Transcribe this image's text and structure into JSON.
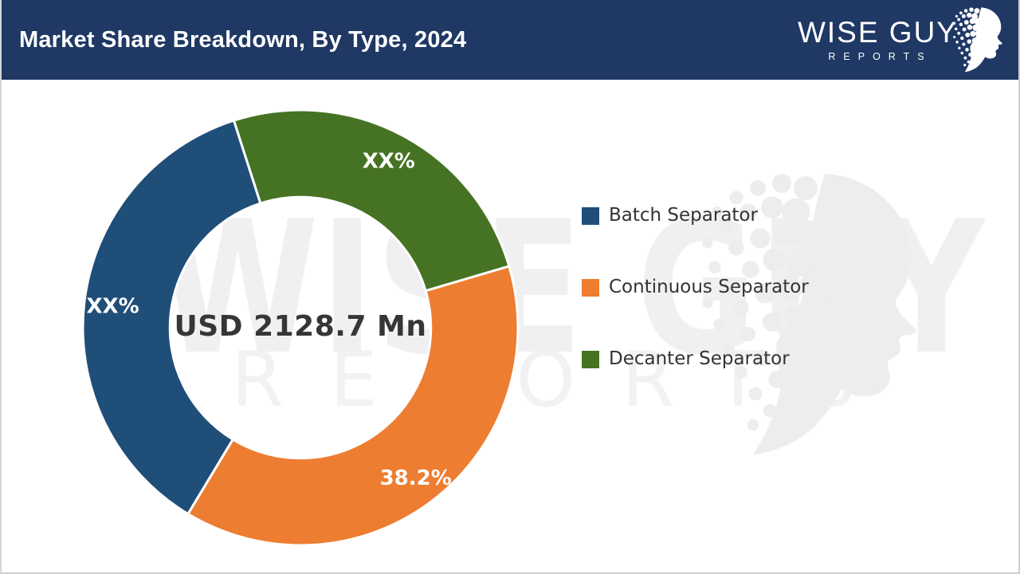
{
  "header": {
    "title": "Market Share Breakdown, By Type, 2024",
    "bg_color": "#1f3864",
    "logo": {
      "line1": "WISE GUY",
      "line2": "REPORTS"
    }
  },
  "chart_data": {
    "type": "pie",
    "subtype": "donut",
    "title": "Market Share Breakdown, By Type, 2024",
    "center_label": "USD 2128.7 Mn",
    "start_angle_deg": 16.4,
    "direction": "counterclockwise",
    "inner_radius_ratio": 0.6,
    "legend_position": "right",
    "slices": [
      {
        "name": "Decanter Separator",
        "label": "XX%",
        "value": 25.4,
        "value_shown": false,
        "color": "#467323"
      },
      {
        "name": "Batch Separator",
        "label": "XX%",
        "value": 36.4,
        "value_shown": false,
        "color": "#1f4e78"
      },
      {
        "name": "Continuous Separator",
        "label": "38.2%",
        "value": 38.2,
        "value_shown": true,
        "color": "#ed7d31"
      }
    ],
    "legend": [
      {
        "label": "Batch Separator",
        "color": "#1f4e78"
      },
      {
        "label": "Continuous Separator",
        "color": "#ed7d31"
      },
      {
        "label": "Decanter Separator",
        "color": "#467323"
      }
    ]
  },
  "watermark": {
    "line1": "WISE GUY",
    "line2": "REPORTS"
  },
  "colors": {
    "page_border": "#cfcfcf",
    "slice_divider": "#ffffff",
    "center_text": "#363636",
    "legend_text": "#333333"
  }
}
